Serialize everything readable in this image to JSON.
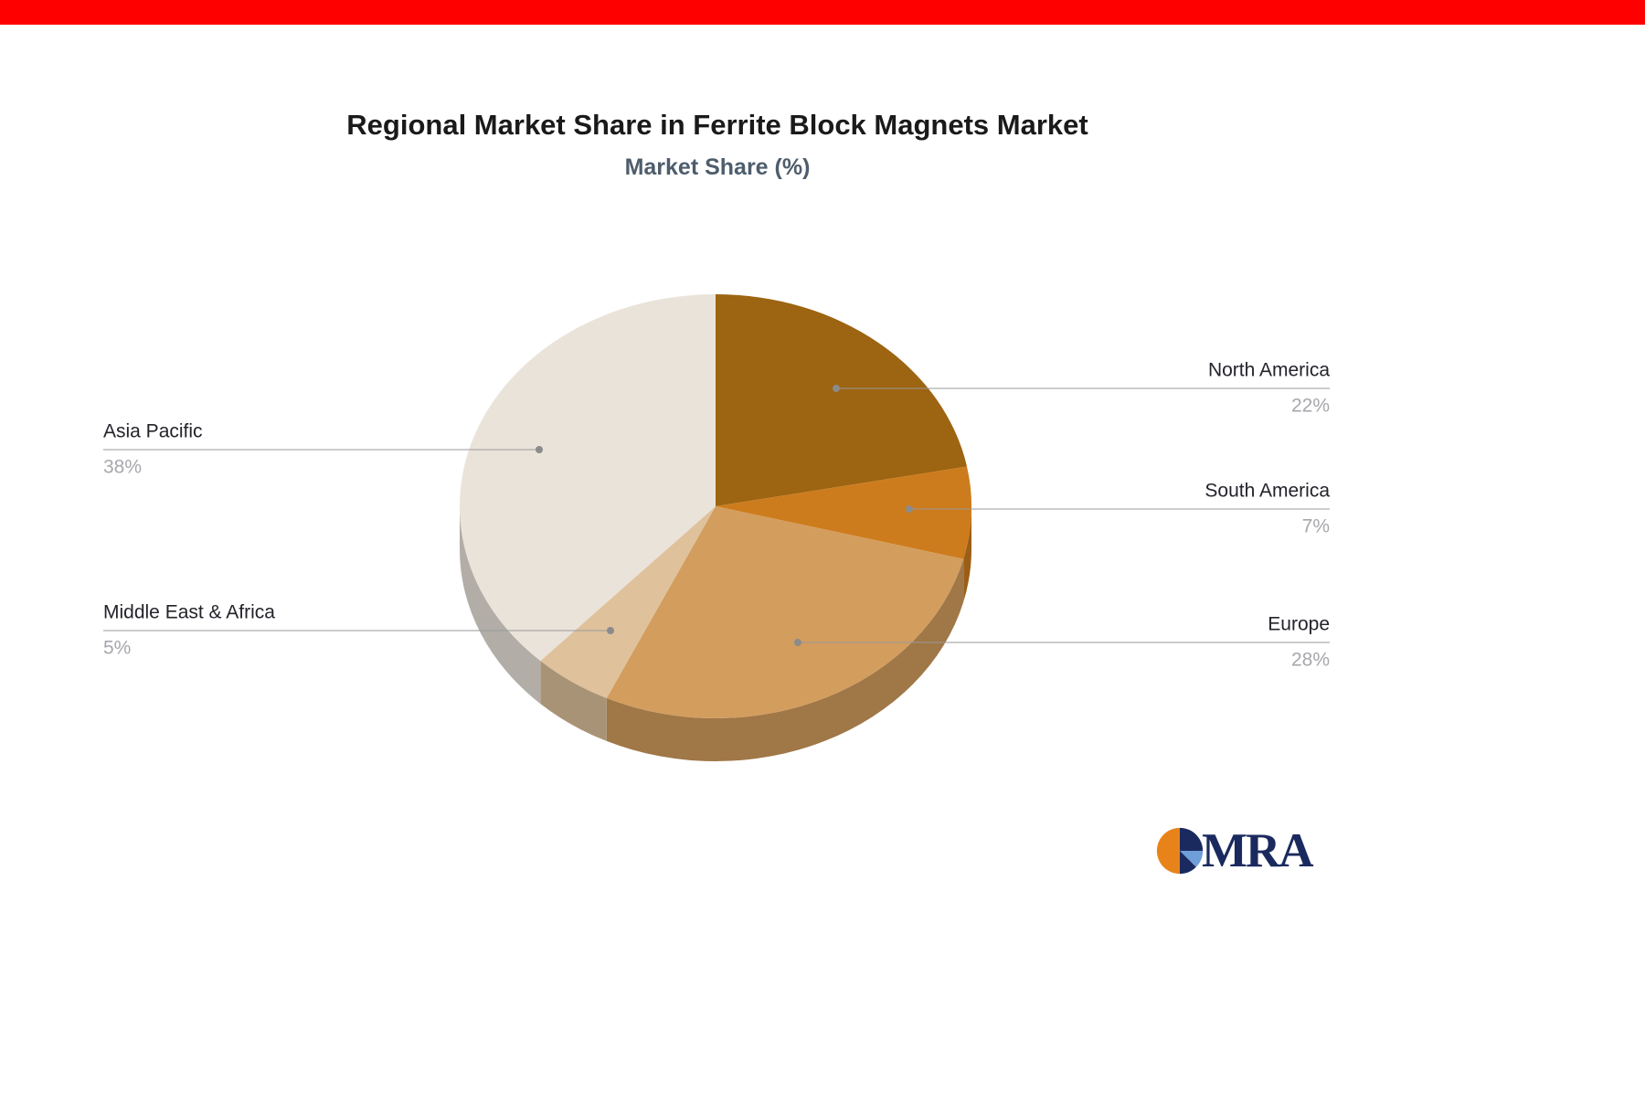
{
  "page": {
    "background": "#ffffff",
    "top_bar_color": "#fe0000"
  },
  "header": {
    "title": "Regional Market Share in Ferrite Block Magnets Market",
    "subtitle": "Market Share (%)"
  },
  "chart_data": {
    "type": "pie",
    "style": "3d",
    "title": "Regional Market Share in Ferrite Block Magnets Market",
    "subtitle": "Market Share (%)",
    "unit": "%",
    "categories": [
      "North America",
      "South America",
      "Europe",
      "Middle East & Africa",
      "Asia Pacific"
    ],
    "values": [
      22,
      7,
      28,
      5,
      38
    ],
    "labels": [
      "22%",
      "7%",
      "28%",
      "5%",
      "38%"
    ],
    "colors": [
      "#9d6411",
      "#cd7c1d",
      "#d39d5e",
      "#dfc19c",
      "#eae3da"
    ],
    "start_angle_deg": -90,
    "direction": "clockwise",
    "legend_position": "none",
    "leader_line_color": "#999999",
    "leader_dot_color": "#8b8b8b",
    "label_name_color": "#23232b",
    "label_value_color": "#a7a7ad"
  },
  "logo": {
    "text": "MRA",
    "text_color": "#1b2a5e",
    "icon_colors": {
      "orange": "#e8831a",
      "navy": "#1b2a5e",
      "light_blue": "#6f9fd8"
    }
  }
}
